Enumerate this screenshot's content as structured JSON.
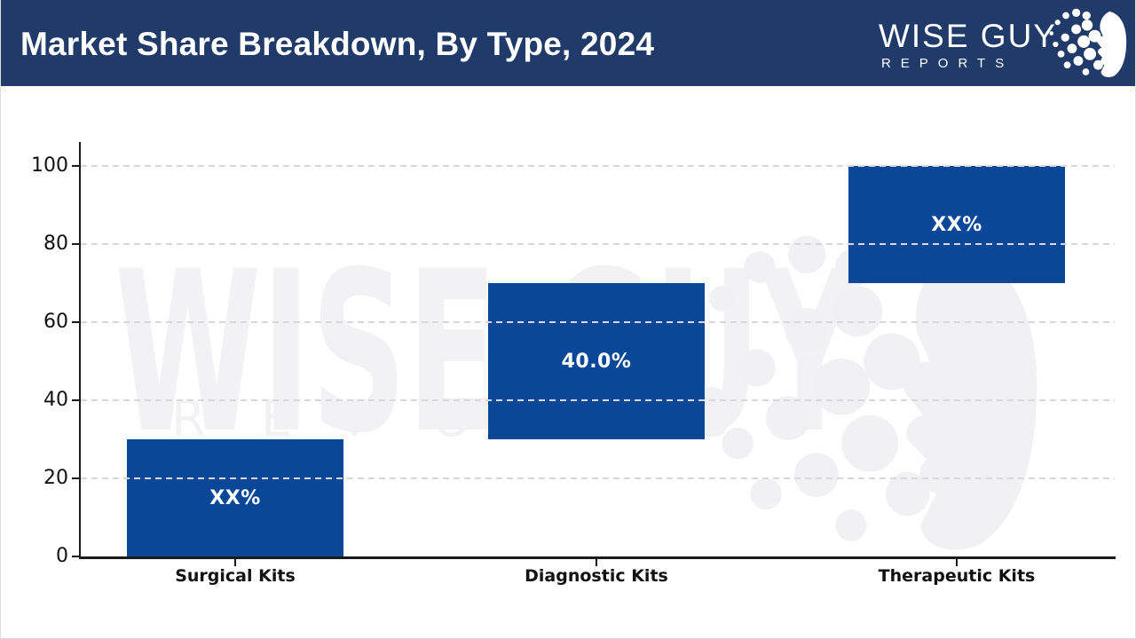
{
  "header": {
    "title": "Market Share Breakdown, By Type, 2024",
    "logo": {
      "word1": "WISE GUY",
      "word2": "REPORTS"
    },
    "bg_color": "#203a69"
  },
  "watermark": {
    "word1": "WISE GUY",
    "word2": "REPORTS",
    "color": "#f2f2f4"
  },
  "chart_data": {
    "type": "bar",
    "subtype": "floating-segment-waterfall",
    "title": "Market Share Breakdown, By Type, 2024",
    "categories": [
      "Surgical Kits",
      "Diagnostic Kits",
      "Therapeutic Kits"
    ],
    "segments": [
      {
        "category": "Surgical Kits",
        "start": 0,
        "end": 30,
        "label": "XX%"
      },
      {
        "category": "Diagnostic Kits",
        "start": 30,
        "end": 70,
        "label": "40.0%"
      },
      {
        "category": "Therapeutic Kits",
        "start": 70,
        "end": 100,
        "label": "XX%"
      }
    ],
    "bar_color": "#0a4799",
    "bar_label_color": "#ffffff",
    "ylim": [
      0,
      100
    ],
    "yticks": [
      0,
      20,
      40,
      60,
      80,
      100
    ],
    "xlabel": "",
    "ylabel": "",
    "grid": {
      "axis": "y",
      "style": "dashed",
      "color": "#d8d8d8",
      "on_top": true
    },
    "legend": "none",
    "axis_color": "#1a1a1a"
  }
}
